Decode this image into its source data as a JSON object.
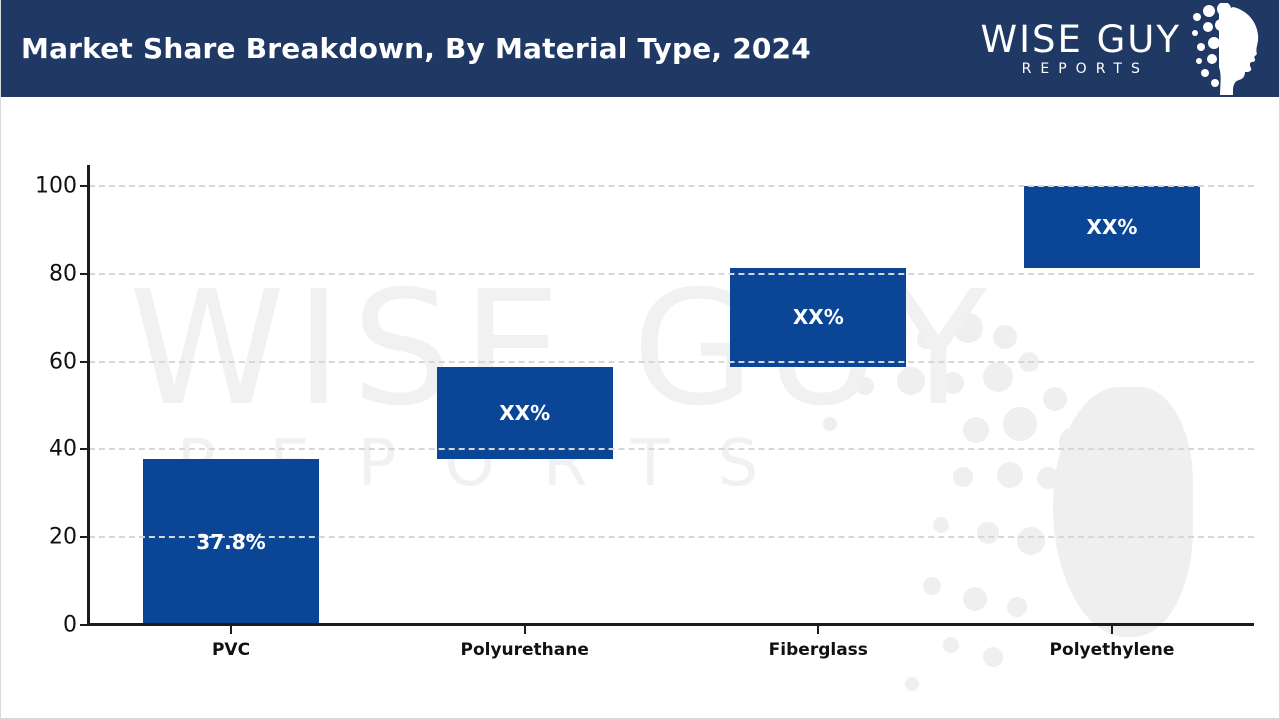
{
  "header": {
    "title": "Market Share Breakdown, By Material Type, 2024",
    "background_color": "#1f3864",
    "brand": {
      "line1": "WISE GUY",
      "line2": "REPORTS",
      "icon": "dotted-head-profile-icon"
    }
  },
  "watermark": {
    "line1": "WISE GUY",
    "line2": "REPORTS",
    "icon": "dotted-head-profile-icon"
  },
  "chart_data": {
    "type": "bar",
    "subtype": "waterfall-breakdown",
    "title": "Market Share Breakdown, By Material Type, 2024",
    "categories": [
      "PVC",
      "Polyurethane",
      "Fiberglass",
      "Polyethylene"
    ],
    "segments": [
      {
        "category": "PVC",
        "start": 0,
        "end": 37.8,
        "label": "37.8%"
      },
      {
        "category": "Polyurethane",
        "start": 37.8,
        "end": 58.8,
        "label": "XX%"
      },
      {
        "category": "Fiberglass",
        "start": 58.8,
        "end": 81.3,
        "label": "XX%"
      },
      {
        "category": "Polyethylene",
        "start": 81.3,
        "end": 100,
        "label": "XX%"
      }
    ],
    "xlabel": "",
    "ylabel": "",
    "ylim": [
      0,
      100
    ],
    "yticks": [
      "0",
      "20",
      "40",
      "60",
      "80",
      "100"
    ],
    "ytick_values": [
      0,
      20,
      40,
      60,
      80,
      100
    ],
    "grid": "horizontal-dashed",
    "legend": "none",
    "bar_color": "#0a4596",
    "bar_label_color": "#ffffff",
    "grid_color": "#d7d7d7",
    "axis_color": "#1c1c1c"
  }
}
